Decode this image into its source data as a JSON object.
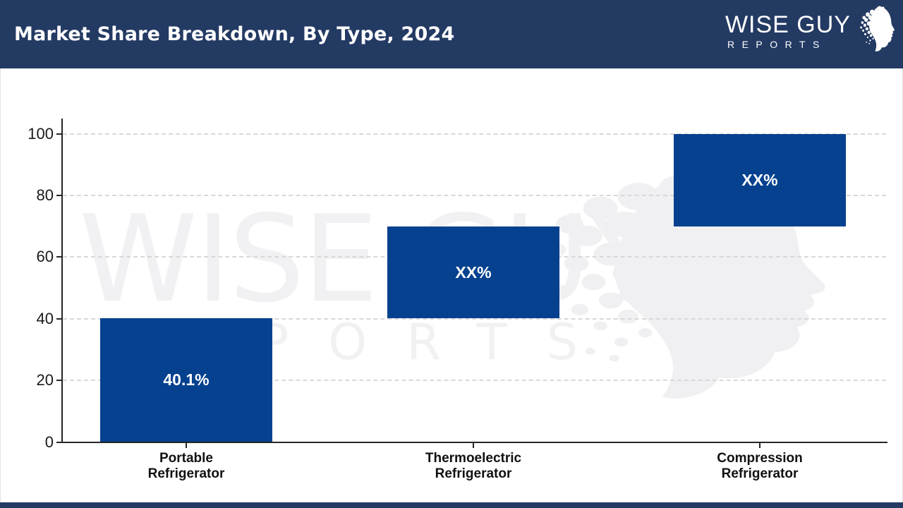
{
  "header": {
    "title": "Market Share Breakdown, By Type, 2024",
    "brand": {
      "name": "WISE GUY",
      "subtitle": "REPORTS"
    }
  },
  "watermark": {
    "line1": "WISE GUY",
    "line2": "REPORTS"
  },
  "chart_data": {
    "type": "bar",
    "subtype": "floating-segment-bars",
    "title": "Market Share Breakdown, By Type, 2024",
    "xlabel": "",
    "ylabel": "",
    "categories": [
      [
        "Portable",
        "Refrigerator"
      ],
      [
        "Thermoelectric",
        "Refrigerator"
      ],
      [
        "Compression",
        "Refrigerator"
      ]
    ],
    "segments": [
      {
        "category": "Portable Refrigerator",
        "start": 0,
        "end": 40.1,
        "label": "40.1%"
      },
      {
        "category": "Thermoelectric Refrigerator",
        "start": 40.1,
        "end": 69.9,
        "label": "XX%"
      },
      {
        "category": "Compression Refrigerator",
        "start": 69.9,
        "end": 100,
        "label": "XX%"
      }
    ],
    "yticks": [
      0,
      20,
      40,
      60,
      80,
      100
    ],
    "ylim": [
      0,
      100
    ],
    "grid": {
      "axis": "y",
      "style": "dashed",
      "color": "#d8d8d8"
    },
    "legend": "none",
    "bar_color": "#05418f",
    "bar_label_color": "#ffffff",
    "axis_color": "#262626",
    "tick_label_color": "#1a1a1a",
    "header_bg_color": "#233a63",
    "watermark_color": "#f1f1f3"
  }
}
